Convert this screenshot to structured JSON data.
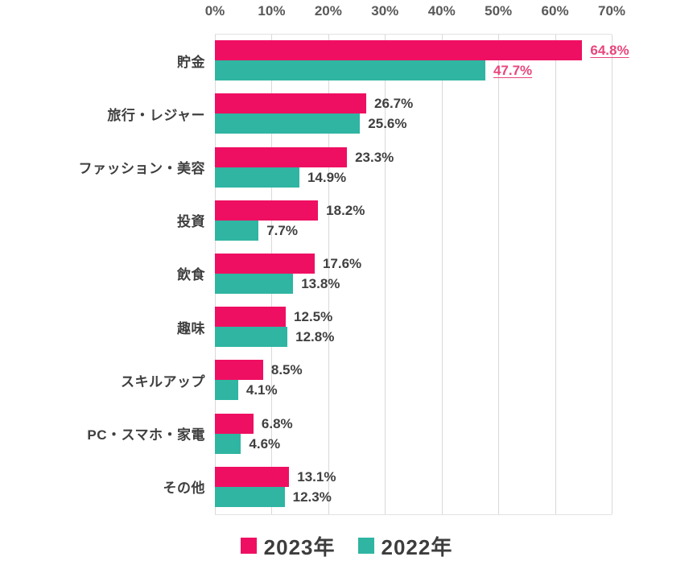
{
  "chart_data": {
    "type": "bar",
    "orientation": "horizontal",
    "categories": [
      "貯金",
      "旅行・レジャー",
      "ファッション・美容",
      "投資",
      "飲食",
      "趣味",
      "スキルアップ",
      "PC・スマホ・家電",
      "その他"
    ],
    "series": [
      {
        "name": "2023年",
        "color": "#ef0f62",
        "values": [
          64.8,
          26.7,
          23.3,
          18.2,
          17.6,
          12.5,
          8.5,
          6.8,
          13.1
        ]
      },
      {
        "name": "2022年",
        "color": "#2fb5a2",
        "values": [
          47.7,
          25.6,
          14.9,
          7.7,
          13.8,
          12.8,
          4.1,
          4.6,
          12.3
        ]
      }
    ],
    "value_labels": [
      [
        "64.8%",
        "26.7%",
        "23.3%",
        "18.2%",
        "17.6%",
        "12.5%",
        "8.5%",
        "6.8%",
        "13.1%"
      ],
      [
        "47.7%",
        "25.6%",
        "14.9%",
        "7.7%",
        "13.8%",
        "12.8%",
        "4.1%",
        "4.6%",
        "12.3%"
      ]
    ],
    "x_ticks": [
      "0%",
      "10%",
      "20%",
      "30%",
      "40%",
      "50%",
      "60%",
      "70%"
    ],
    "xlim": [
      0,
      70
    ],
    "grid": "vertical",
    "legend_position": "bottom",
    "highlighted_category": "貯金",
    "highlight_color": "#e8457e"
  },
  "legend": {
    "items": [
      {
        "label": "2023年",
        "color": "#ef0f62"
      },
      {
        "label": "2022年",
        "color": "#2fb5a2"
      }
    ]
  },
  "colors": {
    "axis_text": "#595959",
    "category_text": "#3f3f3f",
    "value_text": "#404040",
    "grid": "#d9d9d9",
    "background": "#ffffff"
  }
}
